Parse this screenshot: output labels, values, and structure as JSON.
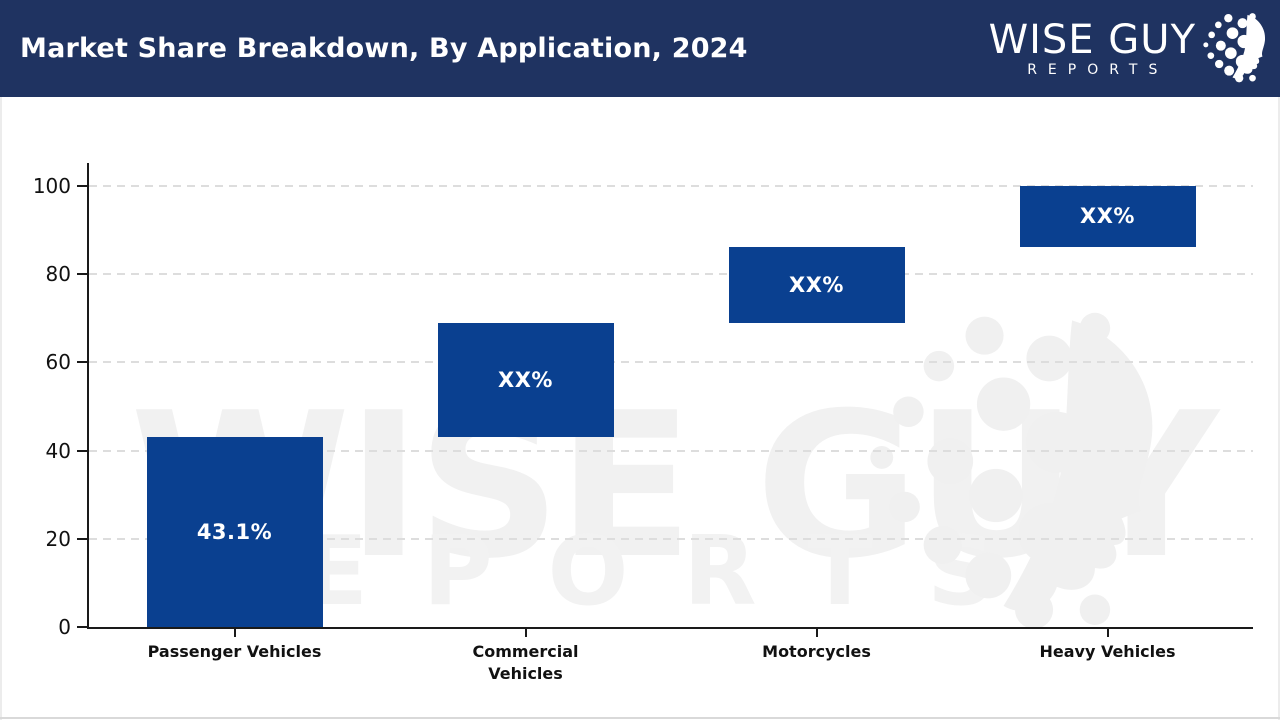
{
  "header": {
    "title": "Market Share Breakdown, By Application, 2024",
    "logo": {
      "line1": "WISE GUY",
      "line2": "REPORTS"
    }
  },
  "watermark": {
    "line1": "WISE GUY",
    "line2": "REPORTS"
  },
  "colors": {
    "header_bg": "#1f3361",
    "bar": "#0a4090",
    "grid": "#dddddd",
    "axis": "#1a1a1a",
    "watermark": "#f1f1f1"
  },
  "chart_data": {
    "type": "bar",
    "subtype": "waterfall",
    "title": "Market Share Breakdown, By Application, 2024",
    "categories": [
      "Passenger Vehicles",
      "Commercial\nVehicles",
      "Motorcycles",
      "Heavy Vehicles"
    ],
    "segments": [
      {
        "category": "Passenger Vehicles",
        "start": 0,
        "end": 43.1,
        "label": "43.1%"
      },
      {
        "category": "Commercial Vehicles",
        "start": 43.1,
        "end": 69.0,
        "label": "XX%"
      },
      {
        "category": "Motorcycles",
        "start": 69.0,
        "end": 86.2,
        "label": "XX%"
      },
      {
        "category": "Heavy Vehicles",
        "start": 86.2,
        "end": 100.0,
        "label": "XX%"
      }
    ],
    "yticks": [
      0,
      20,
      40,
      60,
      80,
      100
    ],
    "ylim": [
      0,
      105.2
    ],
    "xlabel": "",
    "ylabel": "",
    "grid": "horizontal-dashed",
    "legend": "none",
    "bar_color": "#0a4090",
    "bar_label_color": "#ffffff"
  }
}
